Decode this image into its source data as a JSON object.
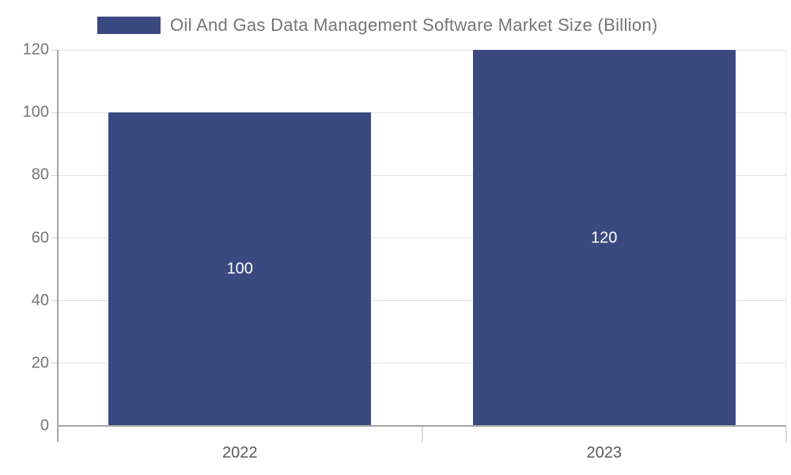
{
  "chart_data": {
    "type": "bar",
    "title": "Oil And Gas Data Management Software Market Size (Billion)",
    "categories": [
      "2022",
      "2023"
    ],
    "values": [
      100,
      120
    ],
    "bar_labels": [
      "100",
      "120"
    ],
    "xlabel": "",
    "ylabel": "",
    "ylim": [
      0,
      120
    ],
    "yticks": [
      0,
      20,
      40,
      60,
      80,
      100,
      120
    ],
    "grid": true,
    "legend_position": "top",
    "colors": {
      "bar": "#3A4A80",
      "legend_text": "#757575",
      "axis_tick_label": "#757575",
      "category_label": "#5a5a5a",
      "bar_value_label": "#ffffff",
      "gridline": "#e2e2e2",
      "axis_line": "#a6a6a6",
      "background": "#ffffff"
    }
  }
}
